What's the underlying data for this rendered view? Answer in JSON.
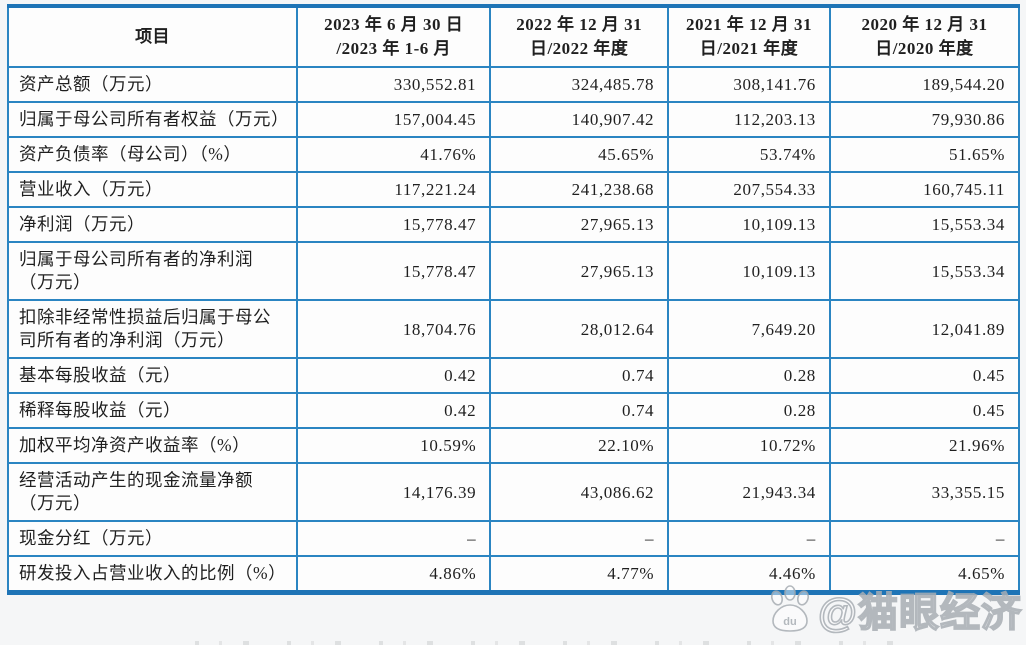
{
  "table": {
    "columns": [
      {
        "line1": "项目",
        "line2": ""
      },
      {
        "line1": "2023 年 6 月 30 日",
        "line2": "/2023 年 1-6 月"
      },
      {
        "line1": "2022 年 12 月 31",
        "line2": "日/2022 年度"
      },
      {
        "line1": "2021 年 12 月 31",
        "line2": "日/2021 年度"
      },
      {
        "line1": "2020 年 12 月 31",
        "line2": "日/2020 年度"
      }
    ],
    "rows": [
      {
        "label": "资产总额（万元）",
        "values": [
          "330,552.81",
          "324,485.78",
          "308,141.76",
          "189,544.20"
        ]
      },
      {
        "label": "归属于母公司所有者权益（万元）",
        "values": [
          "157,004.45",
          "140,907.42",
          "112,203.13",
          "79,930.86"
        ]
      },
      {
        "label": "资产负债率（母公司）（%）",
        "values": [
          "41.76%",
          "45.65%",
          "53.74%",
          "51.65%"
        ]
      },
      {
        "label": "营业收入（万元）",
        "values": [
          "117,221.24",
          "241,238.68",
          "207,554.33",
          "160,745.11"
        ]
      },
      {
        "label": "净利润（万元）",
        "values": [
          "15,778.47",
          "27,965.13",
          "10,109.13",
          "15,553.34"
        ]
      },
      {
        "label": "归属于母公司所有者的净利润（万元）",
        "values": [
          "15,778.47",
          "27,965.13",
          "10,109.13",
          "15,553.34"
        ]
      },
      {
        "label": "扣除非经常性损益后归属于母公司所有者的净利润（万元）",
        "values": [
          "18,704.76",
          "28,012.64",
          "7,649.20",
          "12,041.89"
        ]
      },
      {
        "label": "基本每股收益（元）",
        "values": [
          "0.42",
          "0.74",
          "0.28",
          "0.45"
        ]
      },
      {
        "label": "稀释每股收益（元）",
        "values": [
          "0.42",
          "0.74",
          "0.28",
          "0.45"
        ]
      },
      {
        "label": "加权平均净资产收益率（%）",
        "values": [
          "10.59%",
          "22.10%",
          "10.72%",
          "21.96%"
        ]
      },
      {
        "label": "经营活动产生的现金流量净额（万元）",
        "values": [
          "14,176.39",
          "43,086.62",
          "21,943.34",
          "33,355.15"
        ]
      },
      {
        "label": "现金分红（万元）",
        "values": [
          "–",
          "–",
          "–",
          "–"
        ]
      },
      {
        "label": "研发投入占营业收入的比例（%）",
        "values": [
          "4.86%",
          "4.77%",
          "4.46%",
          "4.65%"
        ]
      }
    ]
  },
  "watermark": {
    "badge_label": "du",
    "text": "@猫眼经济"
  },
  "colors": {
    "border_blue": "#2b85c2",
    "border_outer_blue": "#1e74b6"
  }
}
